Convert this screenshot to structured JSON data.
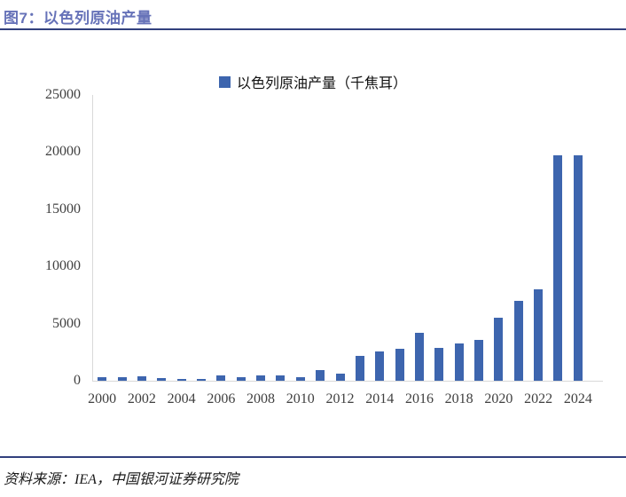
{
  "header": {
    "title": "图7：以色列原油产量"
  },
  "chart_data": {
    "type": "bar",
    "title": "图7：以色列原油产量",
    "legend": "以色列原油产量（千焦耳）",
    "categories": [
      2000,
      2001,
      2002,
      2003,
      2004,
      2005,
      2006,
      2007,
      2008,
      2009,
      2010,
      2011,
      2012,
      2013,
      2014,
      2015,
      2016,
      2017,
      2018,
      2019,
      2020,
      2021,
      2022,
      2023,
      2024
    ],
    "values": [
      300,
      300,
      400,
      250,
      180,
      180,
      470,
      320,
      450,
      430,
      280,
      950,
      600,
      2200,
      2550,
      2800,
      4200,
      2870,
      3250,
      3600,
      5500,
      7000,
      8000,
      19700,
      19700
    ],
    "xtick_labels": [
      "2000",
      "2002",
      "2004",
      "2006",
      "2008",
      "2010",
      "2012",
      "2014",
      "2016",
      "2018",
      "2020",
      "2022",
      "2024"
    ],
    "ytick_values": [
      0,
      5000,
      10000,
      15000,
      20000,
      25000
    ],
    "ylim": [
      0,
      25000
    ],
    "xlabel": "",
    "ylabel": "",
    "grid": false,
    "legend_position": "top-center",
    "bar_color": "#3D65AE"
  },
  "footer": {
    "source": "资料来源：IEA，中国银河证券研究院"
  },
  "colors": {
    "bar": "#3D65AE",
    "title": "#6672B8",
    "divider": "#32407D",
    "axis_line": "#D9D9D9",
    "tick_text": "#404040"
  }
}
